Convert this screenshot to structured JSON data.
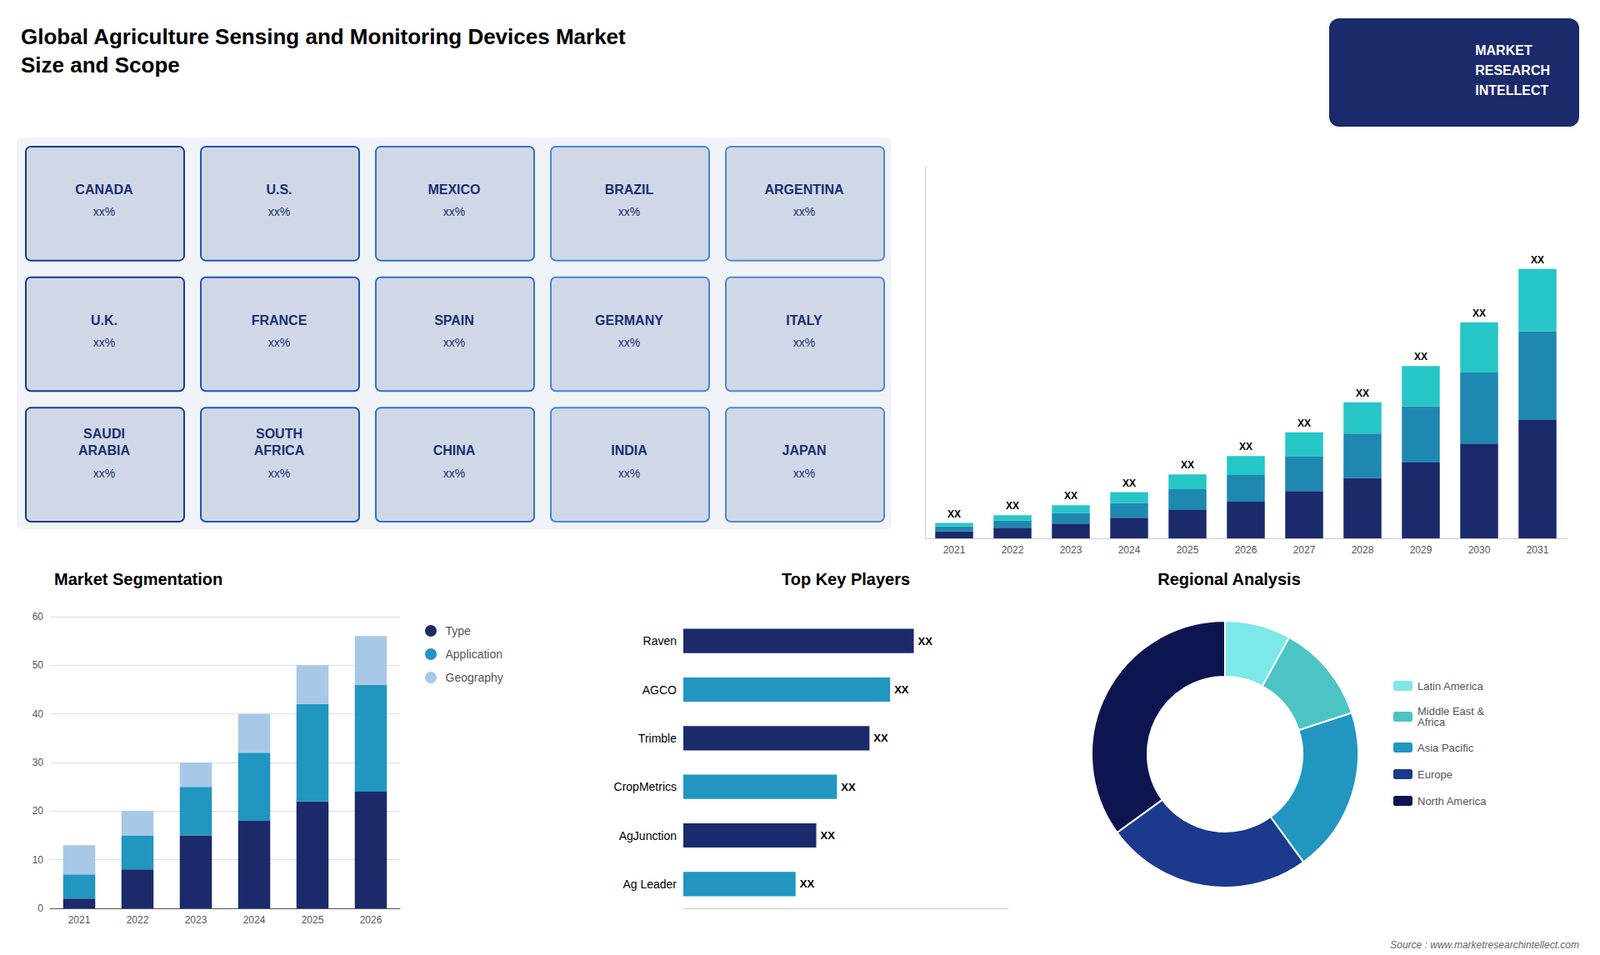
{
  "chart_data": [
    {
      "type": "bar",
      "title": "Global Agriculture Sensing and Monitoring Devices Market\nSize and Scope",
      "categories": [
        "2021",
        "2022",
        "2023",
        "2024",
        "2025",
        "2026",
        "2027",
        "2028",
        "2029",
        "2030",
        "2031"
      ],
      "stacked": true,
      "series": [
        {
          "color": "#1b2a6b",
          "values": [
            1.2,
            1.8,
            2.5,
            3.5,
            4.8,
            6.2,
            8.0,
            10.2,
            12.8,
            16.0,
            20.0
          ]
        },
        {
          "color": "#1e88b0",
          "values": [
            0.8,
            1.2,
            1.8,
            2.5,
            3.5,
            4.5,
            5.8,
            7.5,
            9.5,
            12.0,
            15.0
          ]
        },
        {
          "color": "#26c6c6",
          "values": [
            0.6,
            0.9,
            1.3,
            1.8,
            2.5,
            3.2,
            4.1,
            5.3,
            6.8,
            8.5,
            10.5
          ],
          "value_labels": [
            "XX",
            "XX",
            "XX",
            "XX",
            "XX",
            "XX",
            "XX",
            "XX",
            "XX",
            "XX",
            "XX"
          ]
        }
      ],
      "ylim": [
        0,
        62.79
      ],
      "yticks": [],
      "tick_labels": "x",
      "grid": false,
      "annotations": [
        "MARKET\nRESEARCH\nINTELLECT",
        "Source : www.marketresearchintellect.com"
      ]
    },
    {
      "type": "map",
      "categories": [
        "CANADA",
        "U.S.",
        "MEXICO",
        "BRAZIL",
        "ARGENTINA",
        "U.K.",
        "FRANCE",
        "SPAIN",
        "GERMANY",
        "ITALY",
        "SAUDI\nARABIA",
        "SOUTH\nAFRICA",
        "CHINA",
        "INDIA",
        "JAPAN"
      ],
      "value_labels": [
        "xx%",
        "xx%",
        "xx%",
        "xx%",
        "xx%",
        "xx%",
        "xx%",
        "xx%",
        "xx%",
        "xx%",
        "xx%",
        "xx%",
        "xx%",
        "xx%",
        "xx%"
      ]
    },
    {
      "type": "bar",
      "title": "Market Segmentation",
      "categories": [
        "2021",
        "2022",
        "2023",
        "2024",
        "2025",
        "2026"
      ],
      "stacked": true,
      "series": [
        {
          "name": "Type",
          "color": "#1b2a6b",
          "values": [
            2,
            8,
            15,
            18,
            22,
            24
          ]
        },
        {
          "name": "Application",
          "color": "#2196c0",
          "values": [
            5,
            7,
            10,
            14,
            20,
            22
          ]
        },
        {
          "name": "Geography",
          "color": "#a8c8e8",
          "values": [
            6,
            5,
            5,
            8,
            8,
            10
          ]
        }
      ],
      "ylim": [
        0,
        60
      ],
      "yticks": [
        0,
        10,
        20,
        30,
        40,
        50,
        60
      ],
      "grid": true,
      "legend": "right"
    },
    {
      "type": "bar",
      "title": "Top Key Players",
      "orientation": "horizontal",
      "categories": [
        "Raven",
        "AGCO",
        "Trimble",
        "CropMetrics",
        "AgJunction",
        "Ag Leader"
      ],
      "values": [
        7.8,
        7.0,
        6.3,
        5.2,
        4.5,
        3.8
      ],
      "colors": [
        "#1b2a6b",
        "#2196c0",
        "#1b2a6b",
        "#2196c0",
        "#1b2a6b",
        "#2196c0"
      ],
      "value_labels": [
        "XX",
        "XX",
        "XX",
        "XX",
        "XX",
        "XX"
      ],
      "xlim": [
        0,
        11
      ],
      "xticks": [],
      "tick_labels": "y",
      "grid": false
    },
    {
      "type": "pie",
      "title": "Regional Analysis",
      "categories": [
        "Latin America",
        "Middle East &\nAfrica",
        "Asia Pacific",
        "Europe",
        "North America"
      ],
      "values": [
        8,
        12,
        20,
        25,
        35
      ],
      "colors": [
        "#7de8e8",
        "#4dc4c4",
        "#2196c0",
        "#1b3a8e",
        "#0d1550"
      ],
      "legend": "right"
    }
  ]
}
